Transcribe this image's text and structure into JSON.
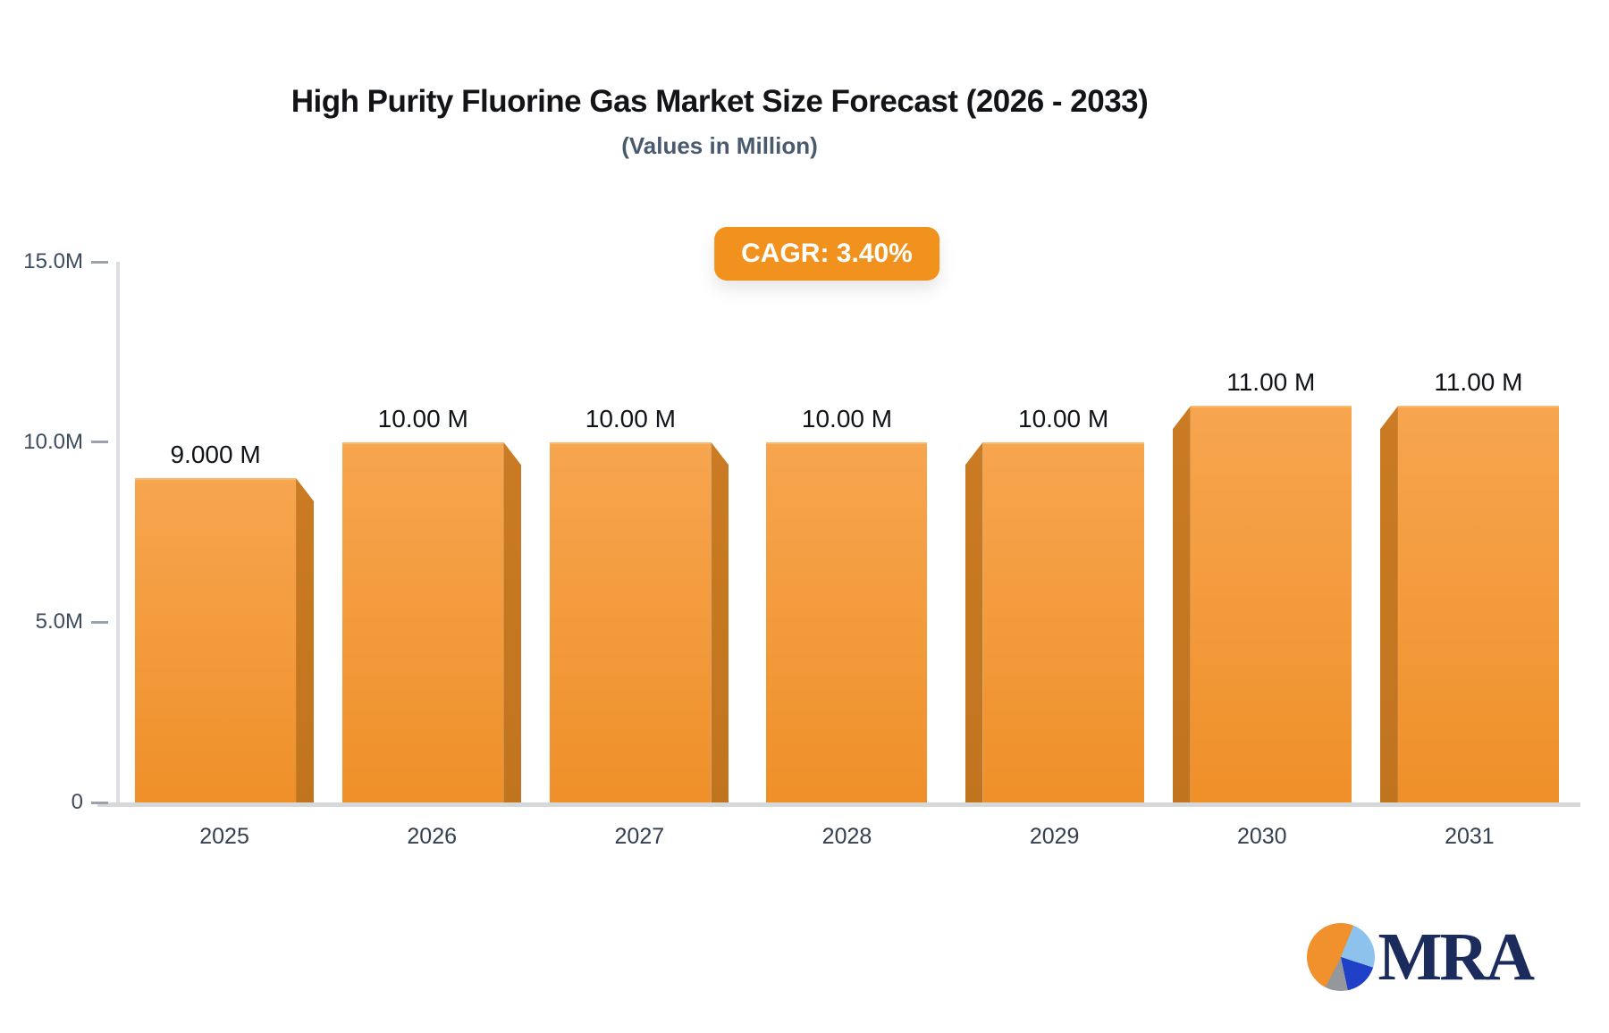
{
  "title": "High Purity Fluorine Gas Market Size Forecast (2026 - 2033)",
  "subtitle": "(Values in Million)",
  "badge": {
    "label": "CAGR: 3.40%"
  },
  "chart_data": {
    "type": "bar",
    "title": "High Purity Fluorine Gas Market Size Forecast (2026 - 2033)",
    "subtitle": "(Values in Million)",
    "annotation": "CAGR: 3.40%",
    "categories": [
      "2025",
      "2026",
      "2027",
      "2028",
      "2029",
      "2030",
      "2031"
    ],
    "values": [
      9,
      10,
      10,
      10,
      10,
      11,
      11
    ],
    "value_labels": [
      "9.000 M",
      "10.00 M",
      "10.00 M",
      "10.00 M",
      "10.00 M",
      "11.00 M",
      "11.00 M"
    ],
    "unit": "Million",
    "ylim": [
      0,
      15
    ],
    "y_ticks": [
      {
        "label": "15.0M",
        "value": 15
      },
      {
        "label": "10.0M",
        "value": 10
      },
      {
        "label": "5.0M",
        "value": 5
      },
      {
        "label": "0",
        "value": 0
      }
    ],
    "grid": false,
    "legend_position": "none",
    "xlabel": "",
    "ylabel": "",
    "style": "3d-bars, perspective toward center bar",
    "colors": {
      "bar_top": "#F7A54F",
      "bar_bottom": "#EF9029",
      "bar_edge": "#C1741E",
      "badge": "#F2921E",
      "axis": "#DBDDE0",
      "tick_text": "#3d4b5f",
      "value_text": "#101418"
    }
  },
  "logo": {
    "text": "MRA",
    "pie_colors": {
      "orange": "#F0912D",
      "light_blue": "#8CC2EB",
      "blue": "#2140C8",
      "gray": "#94979C"
    }
  }
}
